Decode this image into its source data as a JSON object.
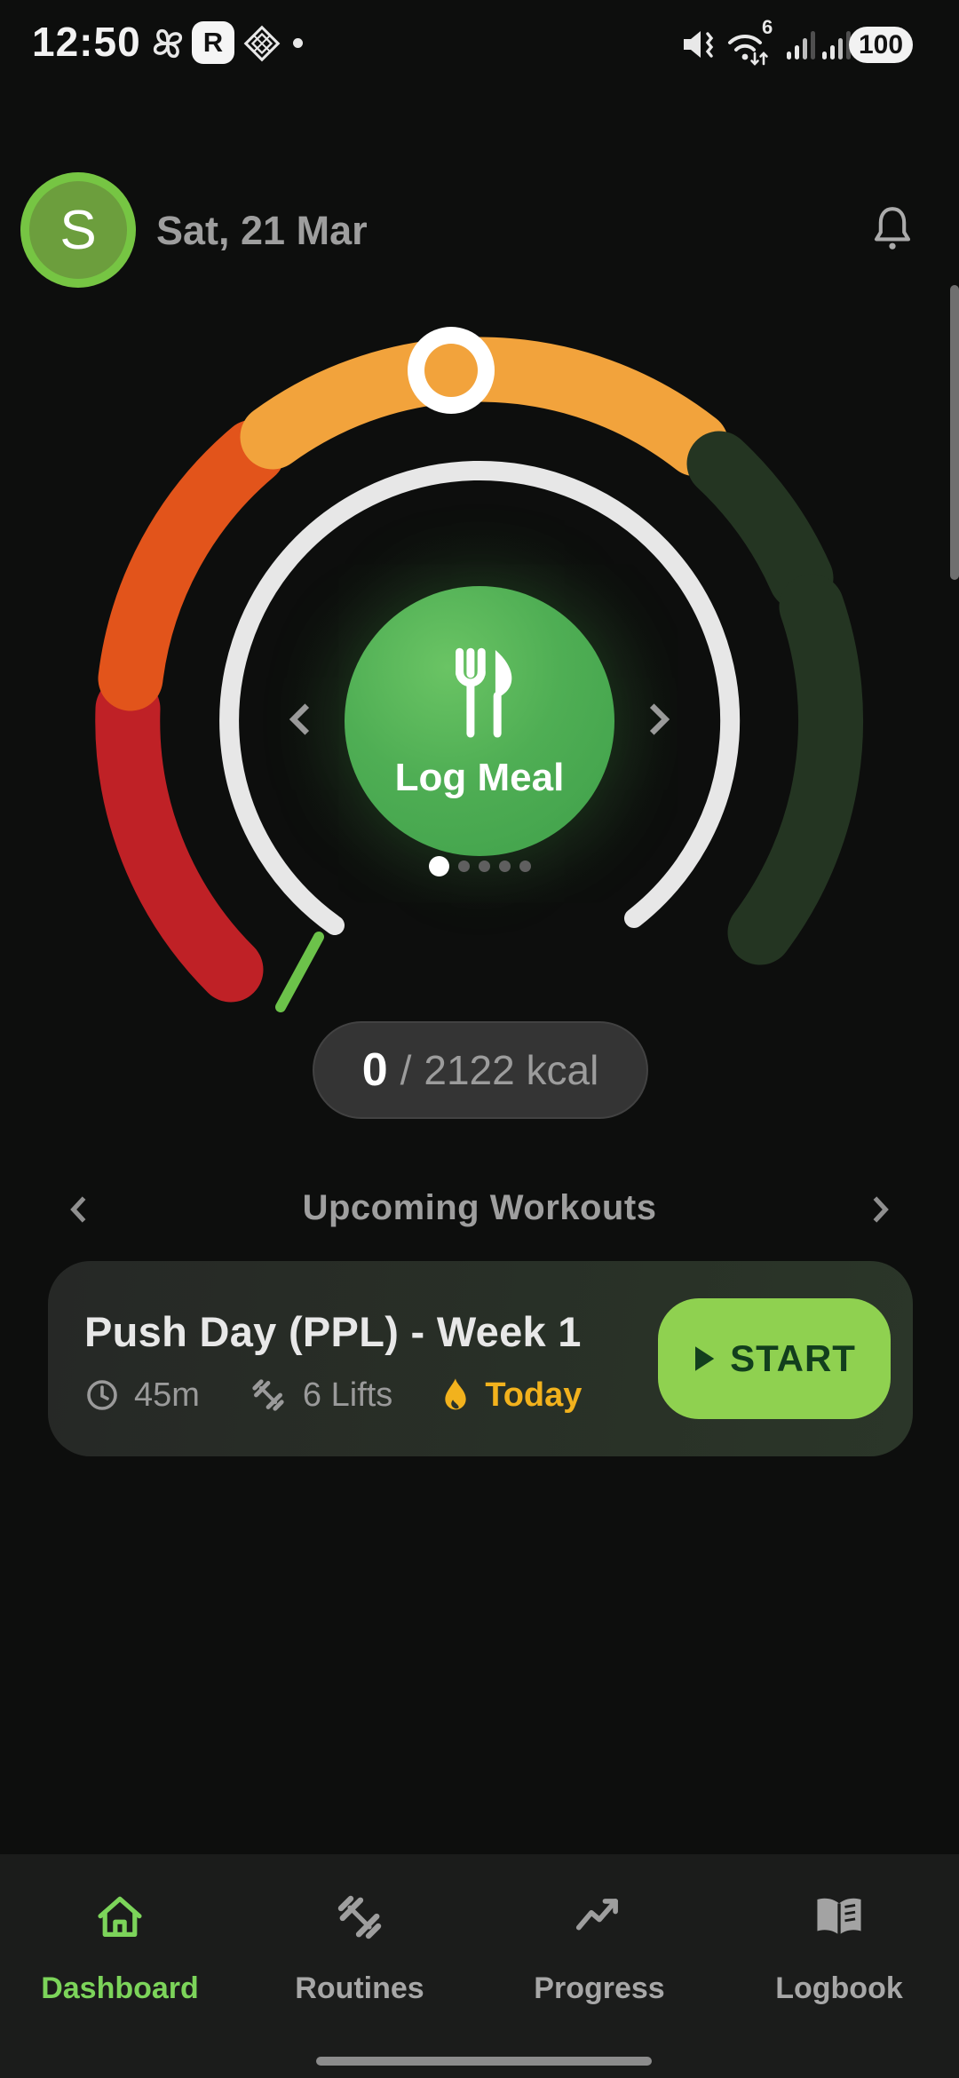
{
  "status_bar": {
    "time": "12:50",
    "app_icon_letter": "R",
    "wifi_label": "6",
    "battery": "100",
    "icons_left": [
      "pinwheel-icon",
      "app-r-icon",
      "diamond-icon",
      "notification-dot"
    ],
    "icons_right": [
      "mute-vibrate-icon",
      "wifi-icon",
      "signal-bars-icon",
      "signal-bars-icon",
      "battery-pill"
    ]
  },
  "header": {
    "avatar_initial": "S",
    "date": "Sat, 21 Mar",
    "bell_icon": "bell-icon"
  },
  "carousel": {
    "action_label": "Log Meal",
    "action_icon": "utensils-icon",
    "dot_count": 5,
    "active_index": 0
  },
  "calories": {
    "consumed": "0",
    "separator": "/",
    "goal": "2122 kcal"
  },
  "workouts": {
    "section_title": "Upcoming Workouts",
    "card": {
      "title": "Push Day (PPL) - Week 1",
      "duration": "45m",
      "lifts": "6 Lifts",
      "due": "Today",
      "start_label": "START"
    }
  },
  "nav": {
    "items": [
      {
        "label": "Dashboard",
        "icon": "home-icon",
        "active": true
      },
      {
        "label": "Routines",
        "icon": "dumbbell-icon",
        "active": false
      },
      {
        "label": "Progress",
        "icon": "trending-up-icon",
        "active": false
      },
      {
        "label": "Logbook",
        "icon": "book-icon",
        "active": false
      }
    ]
  },
  "theme": {
    "background": "#0d0e0d",
    "surface": "#1b1c1b",
    "accent_green": "#7cd45a",
    "button_green": "#8fd150",
    "button_green_text": "#123f1d",
    "center_green_2": "#3fa04a",
    "gauge_amber": "#f2a33c",
    "gauge_orange": "#e2541b",
    "gauge_red": "#bf2126",
    "gauge_dark_green": "#243522",
    "inner_arc": "#e7e7e7",
    "tick_green": "#6cc24a",
    "pill_bg": "#343434",
    "text_muted": "#9e9e9e",
    "today_amber": "#f2b21d",
    "avatar_ring": "#76c543",
    "avatar_bg": "#6c9e3d"
  }
}
